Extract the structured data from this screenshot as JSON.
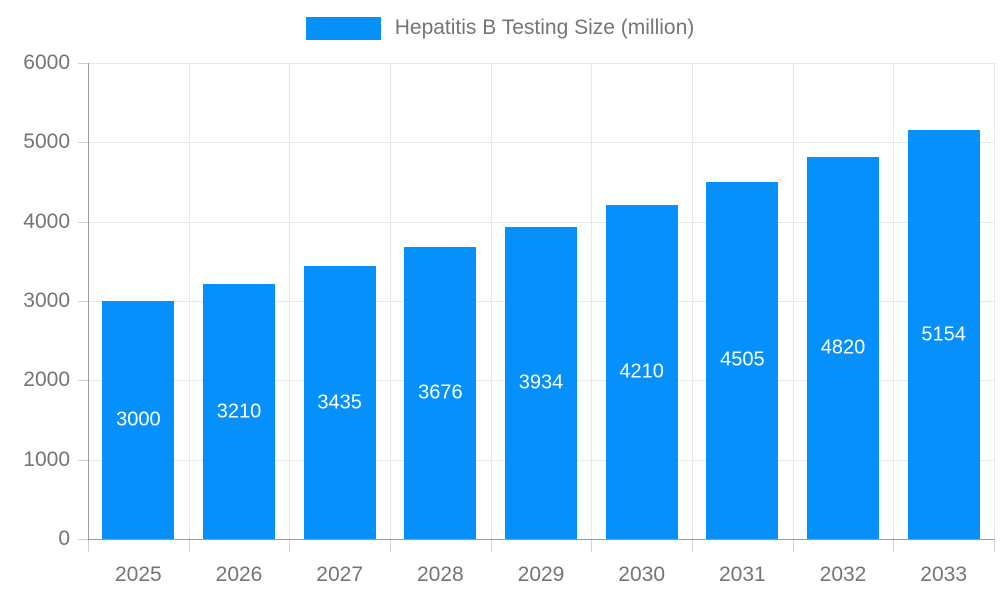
{
  "chart_data": {
    "type": "bar",
    "title": "Hepatitis B Testing Size (million)",
    "legend_position": "top",
    "categories": [
      "2025",
      "2026",
      "2027",
      "2028",
      "2029",
      "2030",
      "2031",
      "2032",
      "2033"
    ],
    "series": [
      {
        "name": "Hepatitis B Testing Size (million)",
        "values": [
          3000,
          3210,
          3435,
          3676,
          3934,
          4210,
          4505,
          4820,
          5154
        ]
      }
    ],
    "data_labels": [
      "3000",
      "3210",
      "3435",
      "3676",
      "3934",
      "4210",
      "4505",
      "4820",
      "5154"
    ],
    "xlabel": "",
    "ylabel": "",
    "ylim": [
      0,
      6000
    ],
    "ytick_step": 1000,
    "yticks": [
      "0",
      "1000",
      "2000",
      "3000",
      "4000",
      "5000",
      "6000"
    ],
    "grid": true,
    "colors": {
      "bar": "#0590fb",
      "data_label": "#ffffff",
      "axis_text": "#757575",
      "gridline": "#e7e7e7",
      "tick": "#d2d2d2",
      "axis_line": "#9c9c9c",
      "background": "#ffffff"
    }
  }
}
